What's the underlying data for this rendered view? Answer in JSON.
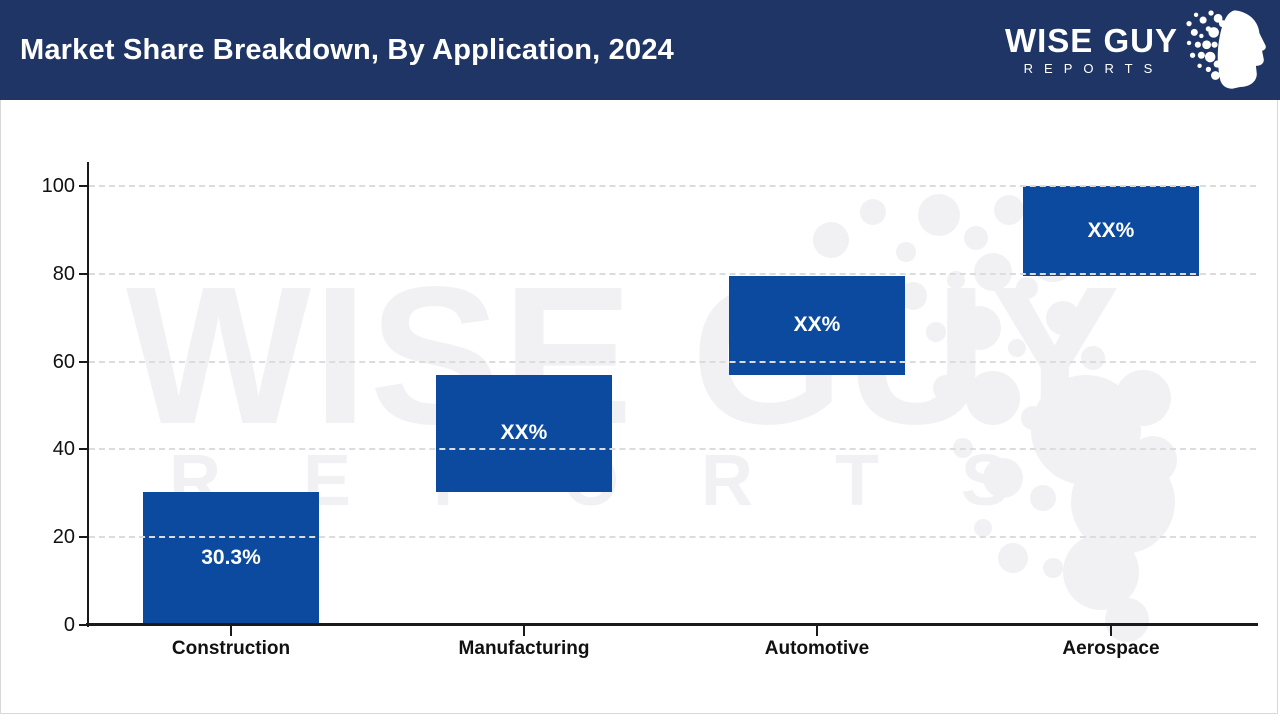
{
  "header": {
    "title": "Market Share Breakdown, By Application, 2024",
    "bg_color": "#1f3565",
    "logo": {
      "line1": "WISE GUY",
      "line2": "REPORTS"
    }
  },
  "watermark": {
    "line1": "WISE GUY",
    "line2": "REPORTS"
  },
  "chart_data": {
    "type": "bar",
    "variant": "waterfall",
    "title": "Market Share Breakdown, By Application, 2024",
    "categories": [
      "Construction",
      "Manufacturing",
      "Automotive",
      "Aerospace"
    ],
    "segments": [
      {
        "category": "Construction",
        "start": 0,
        "end": 30.3,
        "label": "30.3%"
      },
      {
        "category": "Manufacturing",
        "start": 30.3,
        "end": 57,
        "label": "XX%"
      },
      {
        "category": "Automotive",
        "start": 57,
        "end": 79.5,
        "label": "XX%"
      },
      {
        "category": "Aerospace",
        "start": 79.5,
        "end": 100,
        "label": "XX%"
      }
    ],
    "xlabel": "",
    "ylabel": "",
    "ylim": [
      0,
      100
    ],
    "yticks": [
      0,
      20,
      40,
      60,
      80,
      100
    ],
    "grid": "horizontal-dashed",
    "legend": "none",
    "bar_color": "#0b4a9e",
    "bar_label_color": "#ffffff",
    "axis_color": "#1a1a1a"
  }
}
